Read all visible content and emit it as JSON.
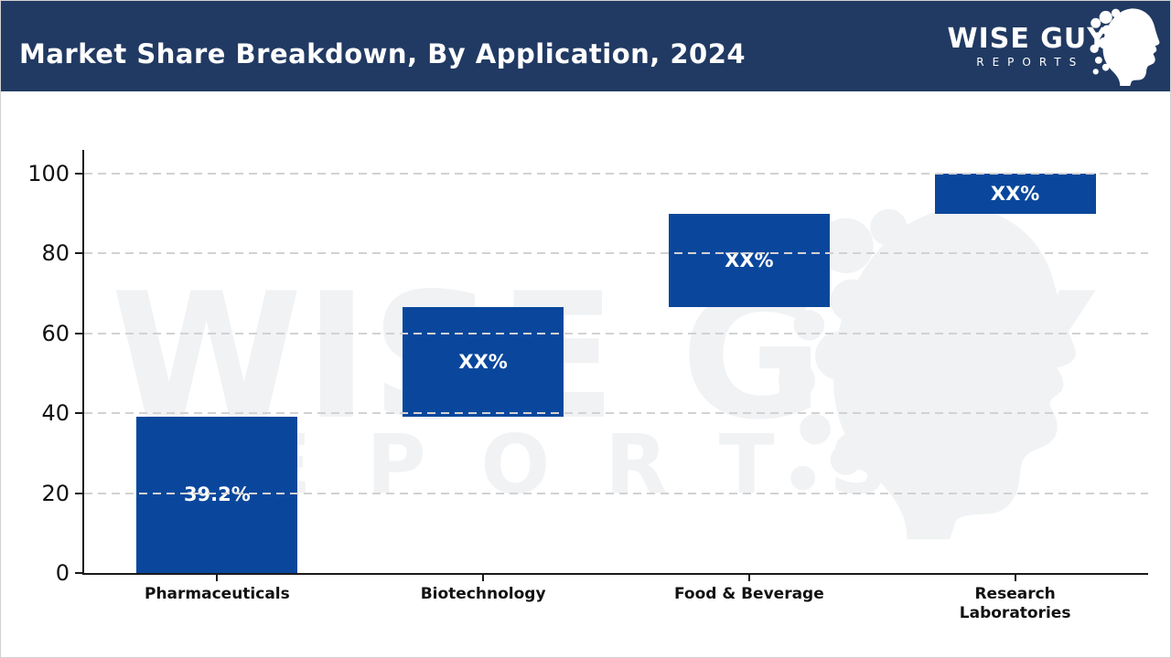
{
  "header": {
    "title": "Market Share Breakdown, By Application, 2024",
    "logo": {
      "line1": "WISE GUY",
      "line2": "REPORTS"
    }
  },
  "watermark": {
    "line1": "WISE GUY",
    "line2": "REPORTS"
  },
  "colors": {
    "header_bg": "#213a63",
    "bar": "#0a479c",
    "grid": "#d2d2d2",
    "watermark": "#f0f2f4",
    "axis": "#1a1a1a",
    "bar_label": "#ffffff"
  },
  "chart_data": {
    "type": "bar",
    "subtype": "waterfall",
    "title": "Market Share Breakdown, By Application, 2024",
    "xlabel": "",
    "ylabel": "",
    "categories": [
      "Pharmaceuticals",
      "Biotechnology",
      "Food & Beverage",
      "Research\nLaboratories"
    ],
    "segments": [
      {
        "category": "Pharmaceuticals",
        "start": 0,
        "end": 39.2,
        "label": "39.2%"
      },
      {
        "category": "Biotechnology",
        "start": 39.2,
        "end": 66.5,
        "label": "XX%"
      },
      {
        "category": "Food & Beverage",
        "start": 66.5,
        "end": 89.8,
        "label": "XX%"
      },
      {
        "category": "Research Laboratories",
        "start": 89.8,
        "end": 100,
        "label": "XX%"
      }
    ],
    "ylim": [
      0,
      100
    ],
    "yticks": [
      0,
      20,
      40,
      60,
      80,
      100
    ],
    "grid": "horizontal-dashed",
    "legend": "none",
    "bar_color": "#0a479c"
  }
}
